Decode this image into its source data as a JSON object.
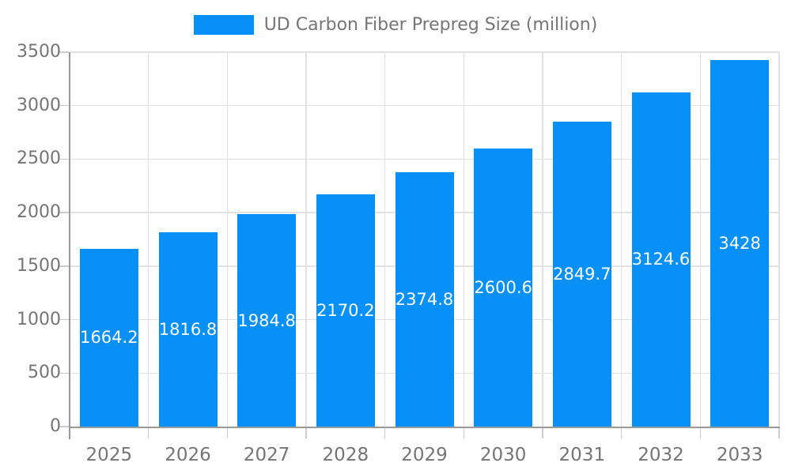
{
  "chart_data": {
    "type": "bar",
    "title": "UD Carbon Fiber Prepreg Size (million)",
    "legend_entries": [
      "UD Carbon Fiber Prepreg Size (million)"
    ],
    "legend_position": "top",
    "categories": [
      "2025",
      "2026",
      "2027",
      "2028",
      "2029",
      "2030",
      "2031",
      "2032",
      "2033"
    ],
    "values": [
      1664.2,
      1816.8,
      1984.8,
      2170.2,
      2374.8,
      2600.6,
      2849.7,
      3124.6,
      3428
    ],
    "bar_labels": [
      "1664.2",
      "1816.8",
      "1984.8",
      "2170.2",
      "2374.8",
      "2600.6",
      "2849.7",
      "3124.6",
      "3428"
    ],
    "xlabel": "",
    "ylabel": "",
    "ylim": [
      0,
      3500
    ],
    "yticks": [
      0,
      500,
      1000,
      1500,
      2000,
      2500,
      3000,
      3500
    ],
    "grid": true,
    "colors": {
      "bar": "#0890F9",
      "grid": "#E2E2E2",
      "axis": "#999999",
      "tick": "#CCCCCC",
      "text": "#757575",
      "bar_label": "#FFFFFF",
      "background": "#FFFFFF"
    }
  }
}
